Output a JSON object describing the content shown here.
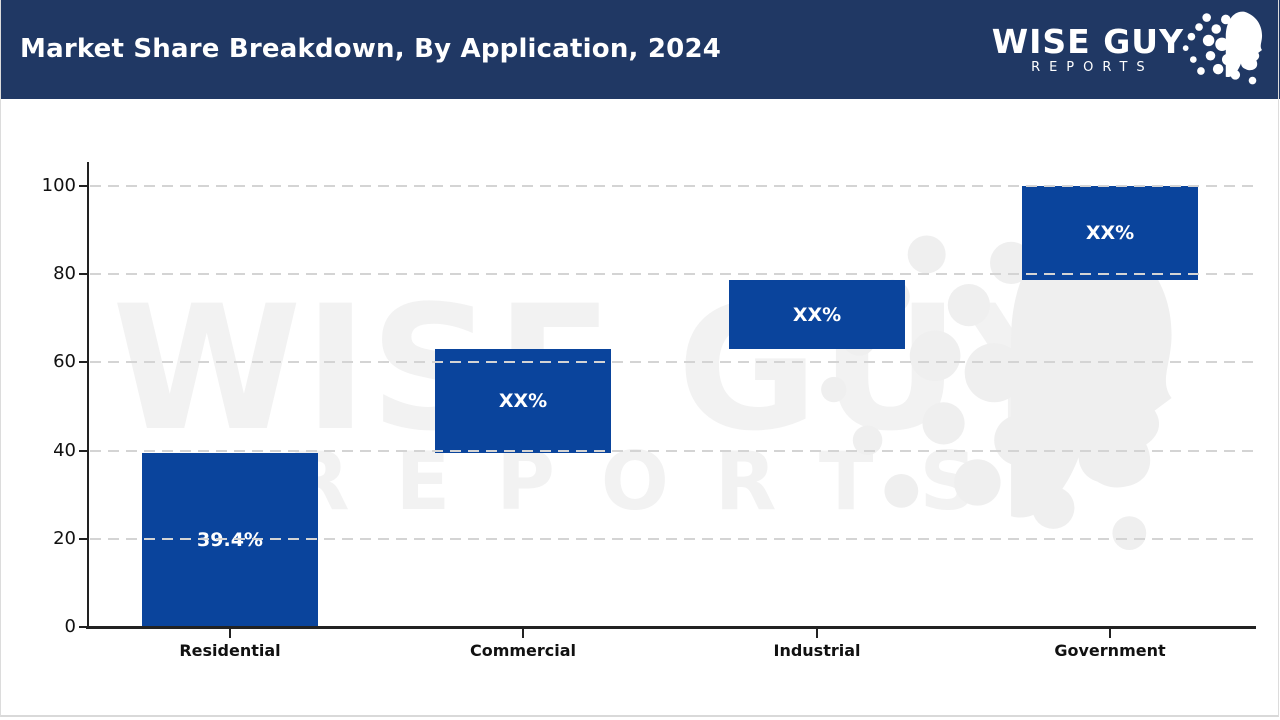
{
  "header": {
    "title": "Market Share Breakdown, By Application, 2024",
    "background_color": "#203864",
    "logo": {
      "line1": "WISE GUY",
      "line2": "REPORTS"
    }
  },
  "watermark": {
    "line1": "WISE GUY",
    "line2": "REPORTS"
  },
  "chart_data": {
    "type": "bar",
    "subtype": "waterfall",
    "title": "Market Share Breakdown, By Application, 2024",
    "categories": [
      "Residential",
      "Commercial",
      "Industrial",
      "Government"
    ],
    "segments": [
      {
        "category": "Residential",
        "start": 0,
        "end": 39.4,
        "label": "39.4%"
      },
      {
        "category": "Commercial",
        "start": 39.4,
        "end": 63.0,
        "label": "XX%"
      },
      {
        "category": "Industrial",
        "start": 63.0,
        "end": 78.7,
        "label": "XX%"
      },
      {
        "category": "Government",
        "start": 78.7,
        "end": 100,
        "label": "XX%"
      }
    ],
    "yticks": [
      0,
      20,
      40,
      60,
      80,
      100
    ],
    "ylim": [
      0,
      105.5
    ],
    "xlabel": "",
    "ylabel": "",
    "grid": "dashed-horizontal",
    "legend": "none",
    "bar_color": "#0a449c",
    "bar_label_color": "#ffffff",
    "axis_color": "#222222",
    "gridline_color": "#d4d4d4"
  }
}
